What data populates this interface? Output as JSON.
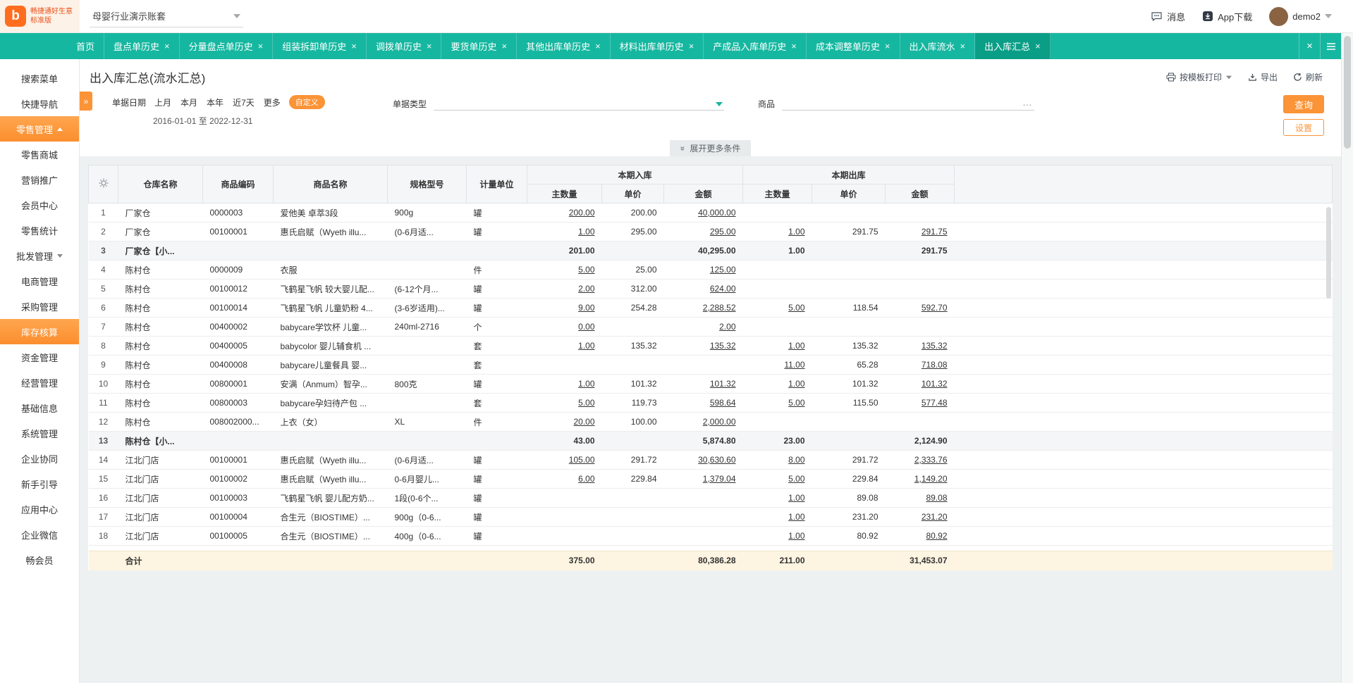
{
  "colors": {
    "brand_teal": "#16b7a0",
    "accent_orange": "#fb9337",
    "active_tab": "#0b9e87",
    "total_row_bg": "#fdf4e1"
  },
  "topbar": {
    "logo_glyph": "b",
    "logo_text": "畅捷通好生意",
    "logo_sub": "标准版",
    "account_set": "母婴行业演示账套",
    "messages": "消息",
    "app_download": "App下载",
    "user": "demo2"
  },
  "tabbar": {
    "close_glyph": "×"
  },
  "tabs": [
    {
      "label": "首页",
      "closable": false,
      "active": false
    },
    {
      "label": "盘点单历史",
      "closable": true,
      "active": false
    },
    {
      "label": "分量盘点单历史",
      "closable": true,
      "active": false
    },
    {
      "label": "组装拆卸单历史",
      "closable": true,
      "active": false
    },
    {
      "label": "调拨单历史",
      "closable": true,
      "active": false
    },
    {
      "label": "要货单历史",
      "closable": true,
      "active": false
    },
    {
      "label": "其他出库单历史",
      "closable": true,
      "active": false
    },
    {
      "label": "材料出库单历史",
      "closable": true,
      "active": false
    },
    {
      "label": "产成品入库单历史",
      "closable": true,
      "active": false
    },
    {
      "label": "成本调整单历史",
      "closable": true,
      "active": false
    },
    {
      "label": "出入库流水",
      "closable": true,
      "active": false
    },
    {
      "label": "出入库汇总",
      "closable": true,
      "active": true
    }
  ],
  "sidebar": [
    {
      "label": "搜索菜单",
      "type": "plain"
    },
    {
      "label": "快捷导航",
      "type": "plain"
    },
    {
      "label": "零售管理",
      "type": "group-open"
    },
    {
      "label": "零售商城",
      "type": "sub"
    },
    {
      "label": "营销推广",
      "type": "sub"
    },
    {
      "label": "会员中心",
      "type": "sub"
    },
    {
      "label": "零售统计",
      "type": "sub"
    },
    {
      "label": "批发管理",
      "type": "group-closed"
    },
    {
      "label": "电商管理",
      "type": "plain"
    },
    {
      "label": "采购管理",
      "type": "plain"
    },
    {
      "label": "库存核算",
      "type": "active"
    },
    {
      "label": "资金管理",
      "type": "plain"
    },
    {
      "label": "经营管理",
      "type": "plain"
    },
    {
      "label": "基础信息",
      "type": "plain"
    },
    {
      "label": "系统管理",
      "type": "plain"
    },
    {
      "label": "企业协同",
      "type": "plain"
    },
    {
      "label": "新手引导",
      "type": "plain"
    },
    {
      "label": "应用中心",
      "type": "plain"
    },
    {
      "label": "企业微信",
      "type": "plain"
    },
    {
      "label": "畅会员",
      "type": "plain"
    }
  ],
  "page": {
    "title": "出入库汇总(流水汇总)",
    "print_label": "按模板打印",
    "export_label": "导出",
    "refresh_label": "刷新"
  },
  "filters": {
    "date_label": "单据日期",
    "date_links": [
      "上月",
      "本月",
      "本年",
      "近7天",
      "更多"
    ],
    "custom_badge": "自定义",
    "date_range": "2016-01-01 至 2022-12-31",
    "doc_type_label": "单据类型",
    "product_label": "商品",
    "product_ellipsis": "…",
    "query_button": "查询",
    "settings_button": "设置",
    "expand_more": "展开更多条件",
    "flap_glyph": "»",
    "expand_glyph": "»"
  },
  "table": {
    "headers": {
      "warehouse": "仓库名称",
      "code": "商品编码",
      "name": "商品名称",
      "spec": "规格型号",
      "unit": "计量单位",
      "in_group": "本期入库",
      "out_group": "本期出库",
      "qty": "主数量",
      "price": "单价",
      "amount": "金额"
    },
    "rows": [
      {
        "n": "1",
        "warehouse": "厂家仓",
        "code": "0000003",
        "name": "爱他美 卓萃3段",
        "spec": "900g",
        "unit": "罐",
        "in_qty": "200.00",
        "in_price": "200.00",
        "in_amt": "40,000.00",
        "out_qty": "",
        "out_price": "",
        "out_amt": "",
        "type": "data"
      },
      {
        "n": "2",
        "warehouse": "厂家仓",
        "code": "00100001",
        "name": "惠氏启赋（Wyeth illu...",
        "spec": "(0-6月适...",
        "unit": "罐",
        "in_qty": "1.00",
        "in_price": "295.00",
        "in_amt": "295.00",
        "out_qty": "1.00",
        "out_price": "291.75",
        "out_amt": "291.75",
        "type": "data"
      },
      {
        "n": "3",
        "warehouse": "厂家仓【小...",
        "code": "",
        "name": "",
        "spec": "",
        "unit": "",
        "in_qty": "201.00",
        "in_price": "",
        "in_amt": "40,295.00",
        "out_qty": "1.00",
        "out_price": "",
        "out_amt": "291.75",
        "type": "summary"
      },
      {
        "n": "4",
        "warehouse": "陈村仓",
        "code": "0000009",
        "name": "衣服",
        "spec": "",
        "unit": "件",
        "in_qty": "5.00",
        "in_price": "25.00",
        "in_amt": "125.00",
        "out_qty": "",
        "out_price": "",
        "out_amt": "",
        "type": "data"
      },
      {
        "n": "5",
        "warehouse": "陈村仓",
        "code": "00100012",
        "name": "飞鹤星飞帆 较大婴儿配...",
        "spec": "(6-12个月...",
        "unit": "罐",
        "in_qty": "2.00",
        "in_price": "312.00",
        "in_amt": "624.00",
        "out_qty": "",
        "out_price": "",
        "out_amt": "",
        "type": "data"
      },
      {
        "n": "6",
        "warehouse": "陈村仓",
        "code": "00100014",
        "name": "飞鹤星飞帆 儿童奶粉 4...",
        "spec": "(3-6岁适用)...",
        "unit": "罐",
        "in_qty": "9.00",
        "in_price": "254.28",
        "in_amt": "2,288.52",
        "out_qty": "5.00",
        "out_price": "118.54",
        "out_amt": "592.70",
        "type": "data"
      },
      {
        "n": "7",
        "warehouse": "陈村仓",
        "code": "00400002",
        "name": "babycare学饮杯 儿童...",
        "spec": "240ml-2716",
        "unit": "个",
        "in_qty": "0.00",
        "in_price": "",
        "in_amt": "2.00",
        "out_qty": "",
        "out_price": "",
        "out_amt": "",
        "type": "data"
      },
      {
        "n": "8",
        "warehouse": "陈村仓",
        "code": "00400005",
        "name": "babycolor 婴儿辅食机 ...",
        "spec": "",
        "unit": "套",
        "in_qty": "1.00",
        "in_price": "135.32",
        "in_amt": "135.32",
        "out_qty": "1.00",
        "out_price": "135.32",
        "out_amt": "135.32",
        "type": "data"
      },
      {
        "n": "9",
        "warehouse": "陈村仓",
        "code": "00400008",
        "name": "babycare儿童餐具 婴...",
        "spec": "",
        "unit": "套",
        "in_qty": "",
        "in_price": "",
        "in_amt": "",
        "out_qty": "11.00",
        "out_price": "65.28",
        "out_amt": "718.08",
        "type": "data"
      },
      {
        "n": "10",
        "warehouse": "陈村仓",
        "code": "00800001",
        "name": "安满（Anmum）智孕...",
        "spec": "800克",
        "unit": "罐",
        "in_qty": "1.00",
        "in_price": "101.32",
        "in_amt": "101.32",
        "out_qty": "1.00",
        "out_price": "101.32",
        "out_amt": "101.32",
        "type": "data"
      },
      {
        "n": "11",
        "warehouse": "陈村仓",
        "code": "00800003",
        "name": "babycare孕妇待产包 ...",
        "spec": "",
        "unit": "套",
        "in_qty": "5.00",
        "in_price": "119.73",
        "in_amt": "598.64",
        "out_qty": "5.00",
        "out_price": "115.50",
        "out_amt": "577.48",
        "type": "data"
      },
      {
        "n": "12",
        "warehouse": "陈村仓",
        "code": "008002000...",
        "name": "上衣（女）",
        "spec": "XL",
        "unit": "件",
        "in_qty": "20.00",
        "in_price": "100.00",
        "in_amt": "2,000.00",
        "out_qty": "",
        "out_price": "",
        "out_amt": "",
        "type": "data"
      },
      {
        "n": "13",
        "warehouse": "陈村仓【小...",
        "code": "",
        "name": "",
        "spec": "",
        "unit": "",
        "in_qty": "43.00",
        "in_price": "",
        "in_amt": "5,874.80",
        "out_qty": "23.00",
        "out_price": "",
        "out_amt": "2,124.90",
        "type": "summary"
      },
      {
        "n": "14",
        "warehouse": "江北门店",
        "code": "00100001",
        "name": "惠氏启赋（Wyeth illu...",
        "spec": "(0-6月适...",
        "unit": "罐",
        "in_qty": "105.00",
        "in_price": "291.72",
        "in_amt": "30,630.60",
        "out_qty": "8.00",
        "out_price": "291.72",
        "out_amt": "2,333.76",
        "type": "data"
      },
      {
        "n": "15",
        "warehouse": "江北门店",
        "code": "00100002",
        "name": "惠氏启赋（Wyeth illu...",
        "spec": "0-6月婴儿...",
        "unit": "罐",
        "in_qty": "6.00",
        "in_price": "229.84",
        "in_amt": "1,379.04",
        "out_qty": "5.00",
        "out_price": "229.84",
        "out_amt": "1,149.20",
        "type": "data"
      },
      {
        "n": "16",
        "warehouse": "江北门店",
        "code": "00100003",
        "name": "飞鹤星飞帆 婴儿配方奶...",
        "spec": "1段(0-6个...",
        "unit": "罐",
        "in_qty": "",
        "in_price": "",
        "in_amt": "",
        "out_qty": "1.00",
        "out_price": "89.08",
        "out_amt": "89.08",
        "type": "data"
      },
      {
        "n": "17",
        "warehouse": "江北门店",
        "code": "00100004",
        "name": "合生元（BIOSTIME）...",
        "spec": "900g（0-6...",
        "unit": "罐",
        "in_qty": "",
        "in_price": "",
        "in_amt": "",
        "out_qty": "1.00",
        "out_price": "231.20",
        "out_amt": "231.20",
        "type": "data"
      },
      {
        "n": "18",
        "warehouse": "江北门店",
        "code": "00100005",
        "name": "合生元（BIOSTIME）...",
        "spec": "400g（0-6...",
        "unit": "罐",
        "in_qty": "",
        "in_price": "",
        "in_amt": "",
        "out_qty": "1.00",
        "out_price": "80.92",
        "out_amt": "80.92",
        "type": "data"
      }
    ],
    "footer": {
      "label": "合计",
      "in_qty": "375.00",
      "in_amt": "80,386.28",
      "out_qty": "211.00",
      "out_amt": "31,453.07"
    }
  }
}
